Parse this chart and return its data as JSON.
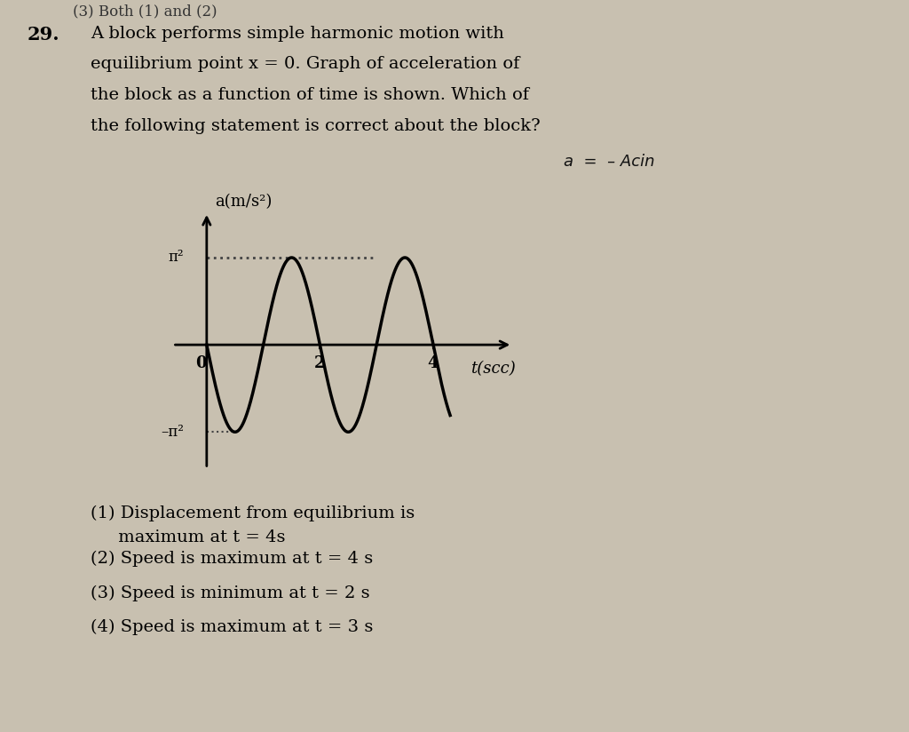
{
  "background_color": "#c8c0b0",
  "question_number": "29.",
  "question_text_line1": "A block performs simple harmonic motion with",
  "question_text_line2": "equilibrium point x = 0. Graph of acceleration of",
  "question_text_line3": "the block as a function of time is shown. Which of",
  "question_text_line4": "the following statement is correct about the block?",
  "top_line": "(3) Both (1) and (2)",
  "annotation_text": "a = – Acin",
  "ylabel": "a(m/s²)",
  "xlabel": "t(scc)",
  "ytick_label_pos": "π²",
  "ytick_label_neg": "–π²",
  "curve_color": "#000000",
  "dotted_line_color": "#444444",
  "options_line1": "(1) Displacement from equilibrium is",
  "options_line2": "     maximum at t = 4s",
  "options_line3": "(2) Speed is maximum at t = 4 s",
  "options_line4": "(3) Speed is minimum at t = 2 s",
  "options_line5": "(4) Speed is maximum at t = 3 s",
  "graph_xlim": [
    -0.6,
    5.5
  ],
  "graph_ylim": [
    -14,
    15
  ],
  "amplitude": 9.8696
}
